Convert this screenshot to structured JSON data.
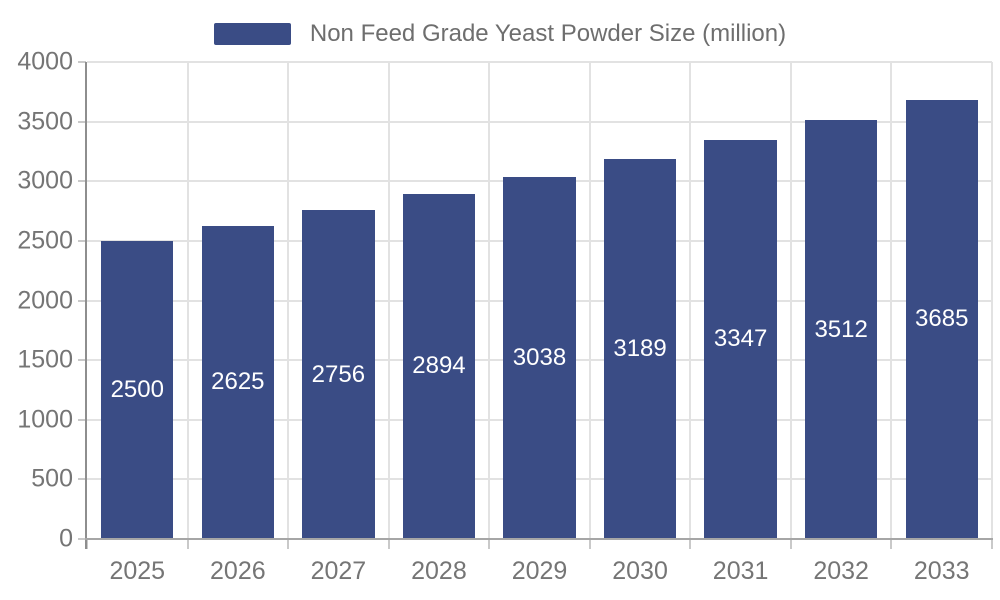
{
  "chart_data": {
    "type": "bar",
    "title": "Non Feed Grade Yeast Powder Size (million)",
    "categories": [
      "2025",
      "2026",
      "2027",
      "2028",
      "2029",
      "2030",
      "2031",
      "2032",
      "2033"
    ],
    "series": [
      {
        "name": "Non Feed Grade Yeast Powder Size (million)",
        "values": [
          2500,
          2625,
          2756,
          2894,
          3038,
          3189,
          3347,
          3512,
          3685
        ]
      }
    ],
    "value_labels_shown": true,
    "xlabel": "",
    "ylabel": "",
    "ylim": [
      0,
      4000
    ],
    "yticks": [
      0,
      500,
      1000,
      1500,
      2000,
      2500,
      3000,
      3500,
      4000
    ],
    "grid": "horizontal and vertical light gridlines",
    "legend_position": "top-center"
  },
  "colors": {
    "bar": "#3a4c85",
    "value_label": "#ffffff",
    "axis_text": "#757575",
    "legend_text": "#6e6e6e",
    "grid": "#e2e2e2",
    "tick": "#c9c9c9",
    "axis_line": "#8e8e8e",
    "baseline": "#a6a6a6",
    "background": "#ffffff"
  }
}
